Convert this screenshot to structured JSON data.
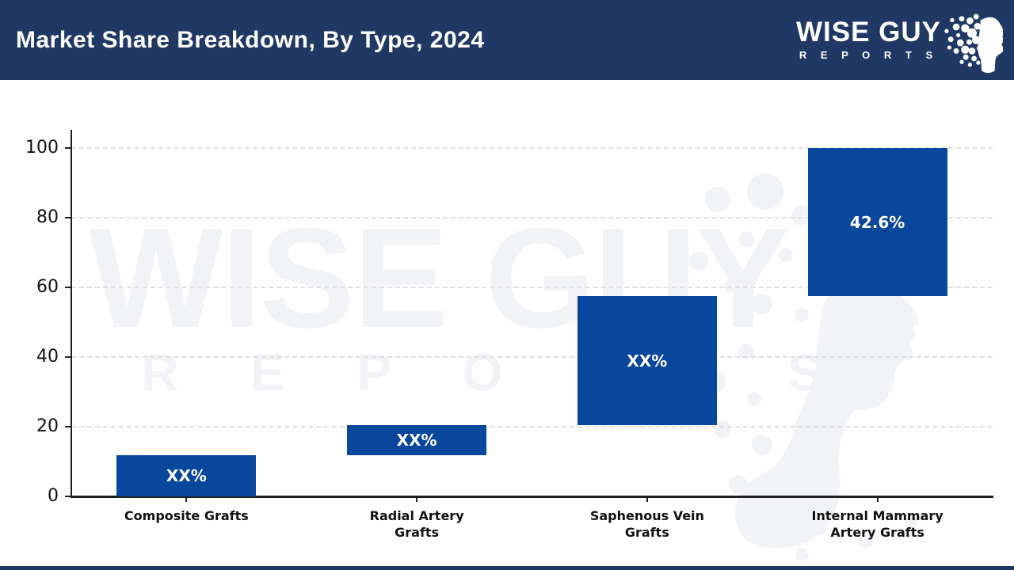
{
  "header": {
    "title": "Market Share Breakdown, By Type, 2024",
    "logo": {
      "line1": "WISE GUY",
      "line2": "R E P O R T S"
    }
  },
  "watermark": {
    "line1": "WISE GUY",
    "line2": "R E P O R T S"
  },
  "colors": {
    "header_bg": "#203864",
    "bar": "#09479c",
    "axis": "#1f1f1f",
    "grid": "#e0e0e0",
    "watermark": "#f2f3f6",
    "bar_label_text": "#ffffff",
    "title_text": "#ffffff"
  },
  "chart_data": {
    "type": "bar",
    "subtype": "floating-waterfall",
    "title": "Market Share Breakdown, By Type, 2024",
    "xlabel": "",
    "ylabel": "",
    "ylim": [
      0,
      100
    ],
    "yticks": [
      0,
      20,
      40,
      60,
      80,
      100
    ],
    "grid": "horizontal-dashed",
    "legend": "none",
    "bar_color": "#09479c",
    "categories": [
      "Composite Grafts",
      "Radial Artery Grafts",
      "Saphenous Vein Grafts",
      "Internal Mammary Artery Grafts"
    ],
    "segments": [
      {
        "category": "Composite Grafts",
        "label_lines": [
          "Composite Grafts"
        ],
        "start": 0,
        "end": 11.8,
        "value_label": "XX%"
      },
      {
        "category": "Radial Artery Grafts",
        "label_lines": [
          "Radial Artery",
          "Grafts"
        ],
        "start": 11.8,
        "end": 20.4,
        "value_label": "XX%"
      },
      {
        "category": "Saphenous Vein Grafts",
        "label_lines": [
          "Saphenous Vein",
          "Grafts"
        ],
        "start": 20.4,
        "end": 57.4,
        "value_label": "XX%"
      },
      {
        "category": "Internal Mammary Artery Grafts",
        "label_lines": [
          "Internal Mammary",
          "Artery Grafts"
        ],
        "start": 57.4,
        "end": 100,
        "value_label": "42.6%",
        "value": 42.6
      }
    ]
  }
}
